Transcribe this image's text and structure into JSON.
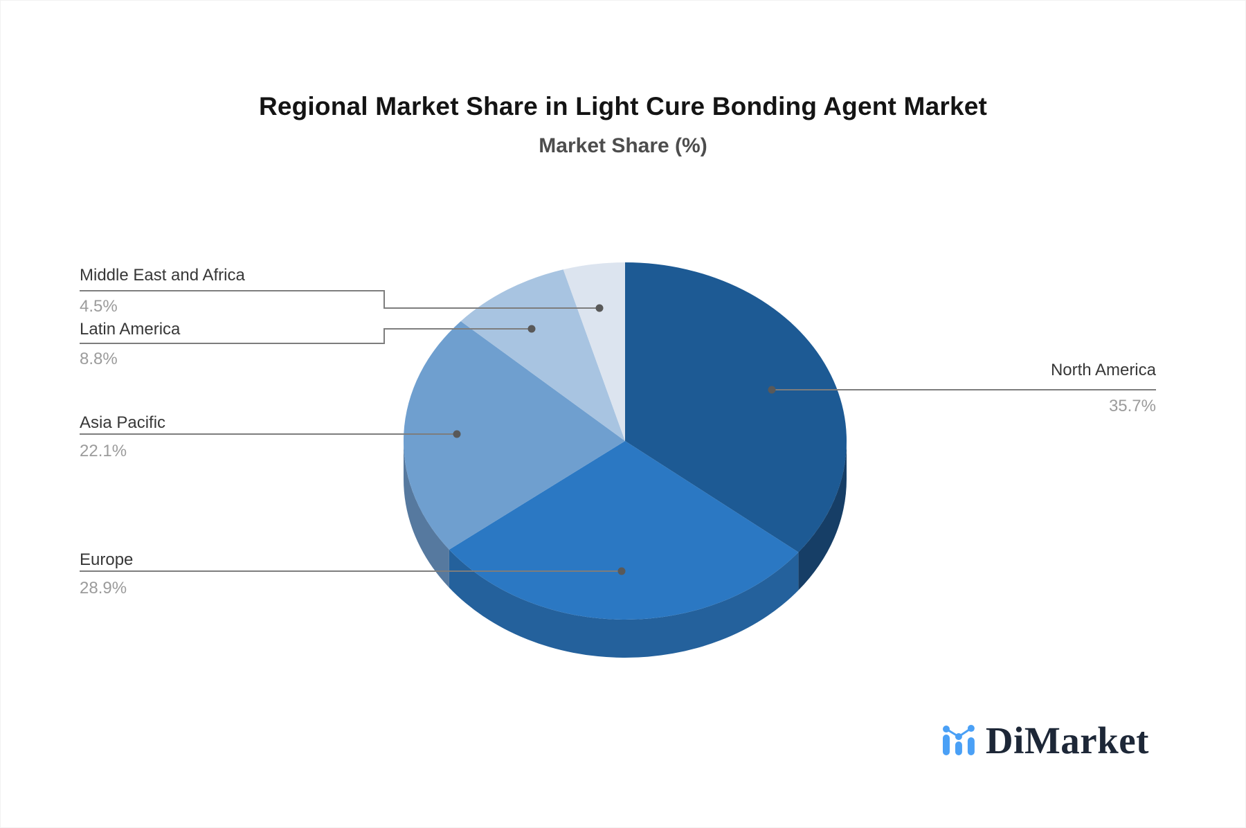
{
  "page": {
    "background": "#ffffff"
  },
  "header": {
    "title": "Regional Market Share in Light Cure Bonding Agent Market",
    "subtitle": "Market Share (%)"
  },
  "chart_data": {
    "type": "pie",
    "title": "Regional Market Share in Light Cure Bonding Agent Market",
    "subtitle": "Market Share (%)",
    "unit": "%",
    "start_angle": "12-o-clock",
    "direction": "clockwise",
    "effect": "3d",
    "legend_position": "callout-labels",
    "slices": [
      {
        "label": "North America",
        "value": 35.7,
        "display": "35.7%",
        "color": "#1d5a94",
        "side_color": "#163e66"
      },
      {
        "label": "Europe",
        "value": 28.9,
        "display": "28.9%",
        "color": "#2b78c3",
        "side_color": "#24619c"
      },
      {
        "label": "Asia Pacific",
        "value": 22.1,
        "display": "22.1%",
        "color": "#6f9fcf",
        "side_color": "#56799f"
      },
      {
        "label": "Latin America",
        "value": 8.8,
        "display": "8.8%",
        "color": "#a8c4e1",
        "side_color": "#8fb0d3"
      },
      {
        "label": "Middle East and Africa",
        "value": 4.5,
        "display": "4.5%",
        "color": "#dce4ef",
        "side_color": "#c2cede"
      }
    ],
    "style": {
      "leader_line_color": "#7d7d7d",
      "leader_dot_color": "#595959",
      "label_text_color": "#373737",
      "value_text_color": "#9b9b9b"
    }
  },
  "branding": {
    "logo_text": "DiMarket",
    "logo_accent_color": "#4aa0f6",
    "logo_text_color": "#1d2737"
  }
}
